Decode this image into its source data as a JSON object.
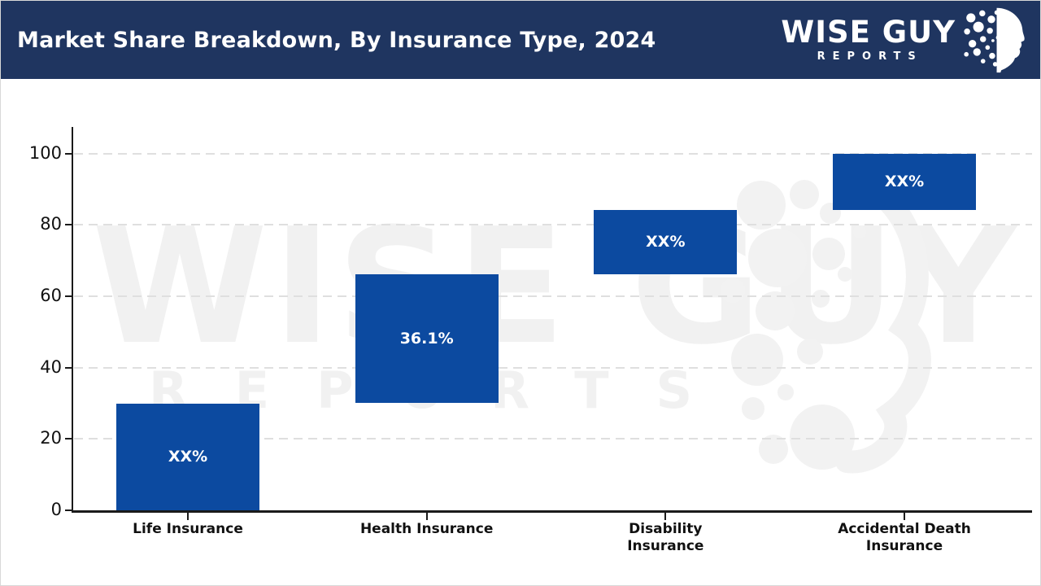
{
  "header": {
    "title": "Market Share Breakdown, By Insurance Type, 2024",
    "logo": {
      "wordmark": "WISE GUY",
      "subtext": "REPORTS"
    }
  },
  "watermark": {
    "line1": "WISE GUY",
    "line2": "REPORTS"
  },
  "colors": {
    "header_bg": "#1f3560",
    "bar": "#0c4aa0",
    "axis": "#1a1a1a",
    "grid": "#dfdfdf",
    "bar_label": "#ffffff",
    "watermark": "#f1f1f1"
  },
  "chart_data": {
    "type": "bar",
    "variant": "waterfall",
    "title": "Market Share Breakdown, By Insurance Type, 2024",
    "categories": [
      "Life Insurance",
      "Health Insurance",
      "Disability Insurance",
      "Accidental Death Insurance"
    ],
    "category_label_lines": [
      [
        "Life Insurance"
      ],
      [
        "Health Insurance"
      ],
      [
        "Disability",
        "Insurance"
      ],
      [
        "Accidental Death",
        "Insurance"
      ]
    ],
    "values": [
      30,
      36.1,
      18,
      15.9
    ],
    "cumulative_start": [
      0,
      30,
      66.1,
      84.1
    ],
    "bar_labels": [
      "XX%",
      "36.1%",
      "XX%",
      "XX%"
    ],
    "ylabel": "",
    "xlabel": "",
    "ylim": [
      0,
      100
    ],
    "yticks": [
      0,
      20,
      40,
      60,
      80,
      100
    ],
    "grid": "horizontal-dashed",
    "legend": null,
    "bar_color": "#0c4aa0"
  }
}
